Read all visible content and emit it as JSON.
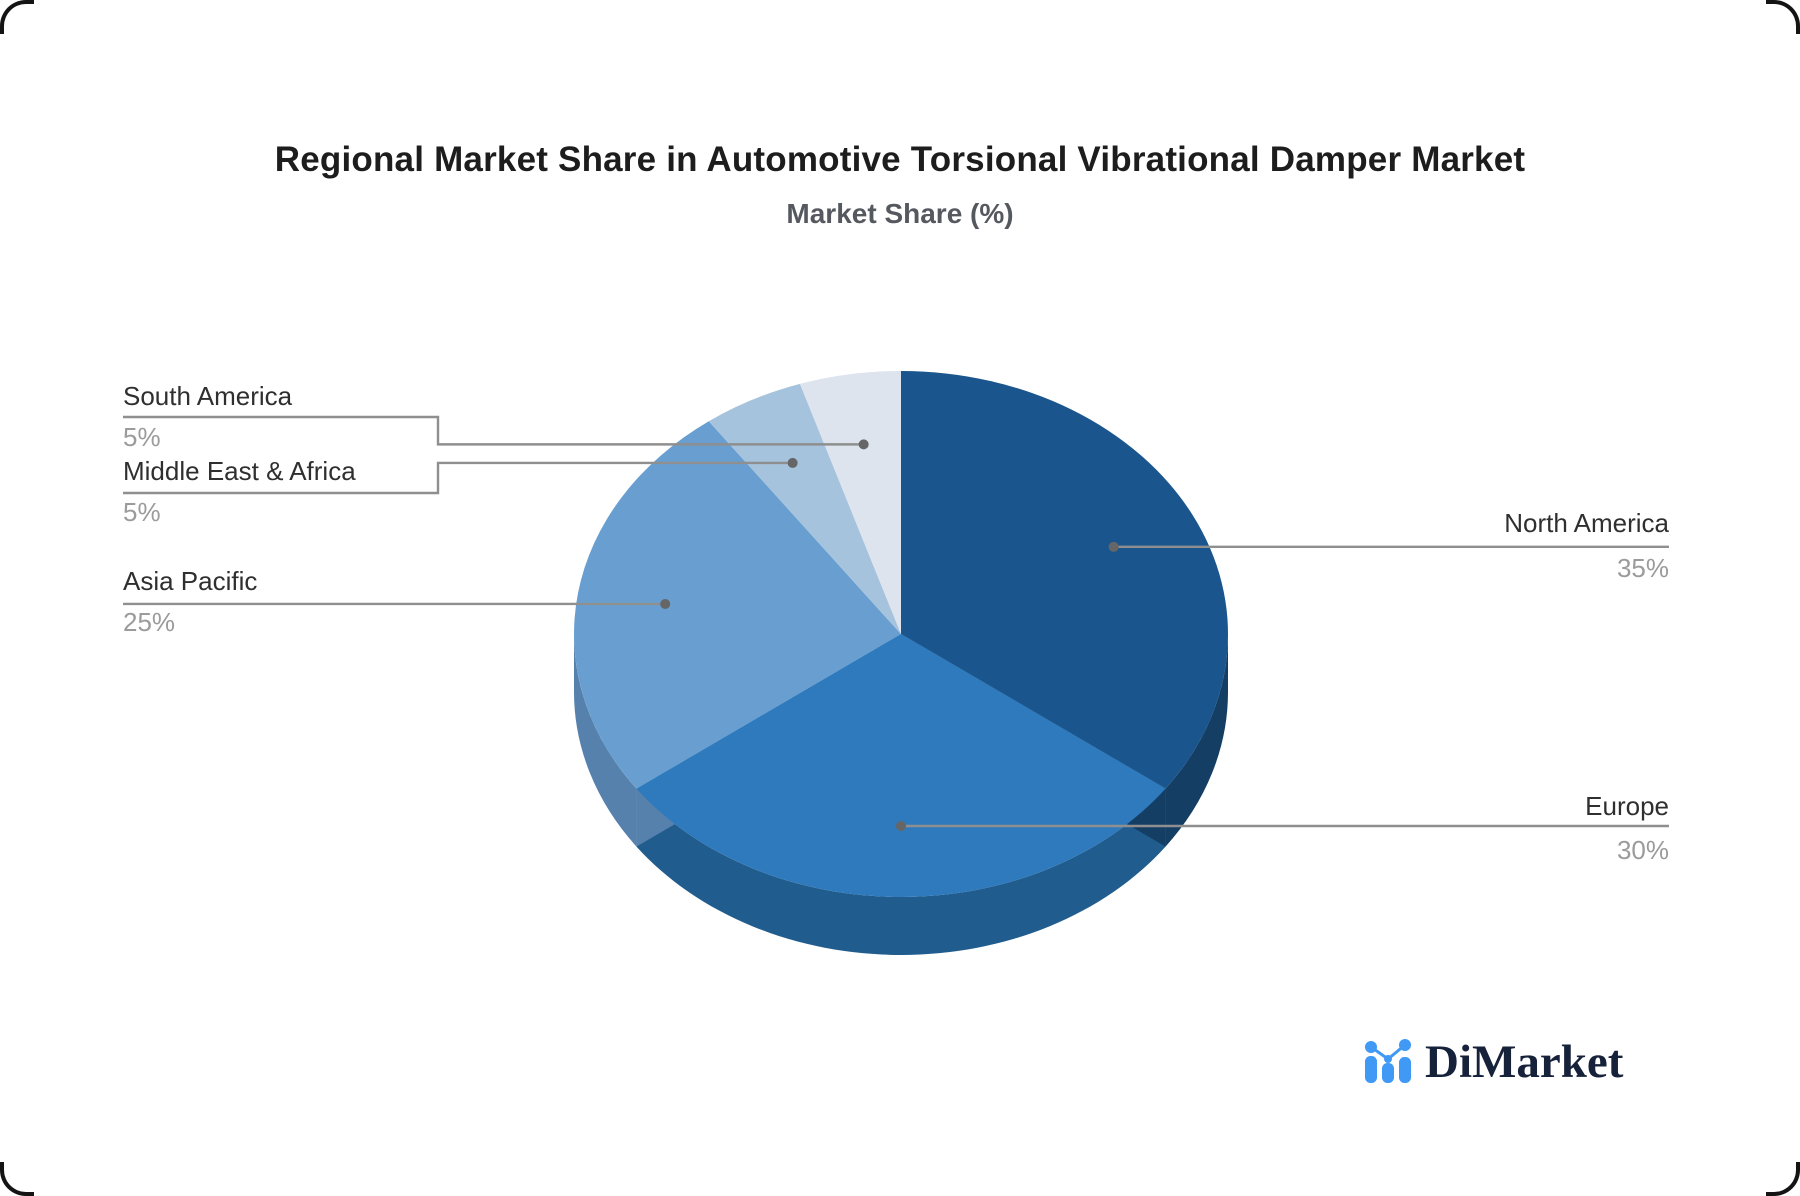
{
  "page": {
    "title": "Regional Market Share in Automotive Torsional Vibrational Damper Market",
    "subtitle": "Market Share (%)"
  },
  "brand": {
    "name": "DiMarket",
    "icon": "bar-chart-logo-icon",
    "icon_color": "#3f99f5",
    "text_color": "#16213a"
  },
  "chart_data": {
    "type": "pie",
    "style": "3d-depth",
    "title": "Regional Market Share in Automotive Torsional Vibrational Damper Market",
    "subtitle": "Market Share (%)",
    "unit": "percent",
    "start_angle_deg": 0,
    "direction": "clockwise",
    "legend_position": "callout-labels",
    "slices": [
      {
        "label": "North America",
        "value": 35,
        "pct_label": "35%",
        "color": "#1a568d",
        "wall_color": "#143e64",
        "callout_side": "right"
      },
      {
        "label": "Europe",
        "value": 30,
        "pct_label": "30%",
        "color": "#2e7abd",
        "wall_color": "#205d8e",
        "callout_side": "right"
      },
      {
        "label": "Asia Pacific",
        "value": 25,
        "pct_label": "25%",
        "color": "#689fd0",
        "wall_color": "#5681ad",
        "callout_side": "left"
      },
      {
        "label": "Middle East & Africa",
        "value": 5,
        "pct_label": "5%",
        "color": "#a6c3de",
        "callout_side": "left"
      },
      {
        "label": "South America",
        "value": 5,
        "pct_label": "5%",
        "color": "#dde4ee",
        "callout_side": "left"
      }
    ],
    "colors": {
      "connector": "#8f8f8f",
      "dot": "#666666",
      "label_text": "#2f2f2f",
      "pct_text": "#9b9b9b"
    }
  }
}
